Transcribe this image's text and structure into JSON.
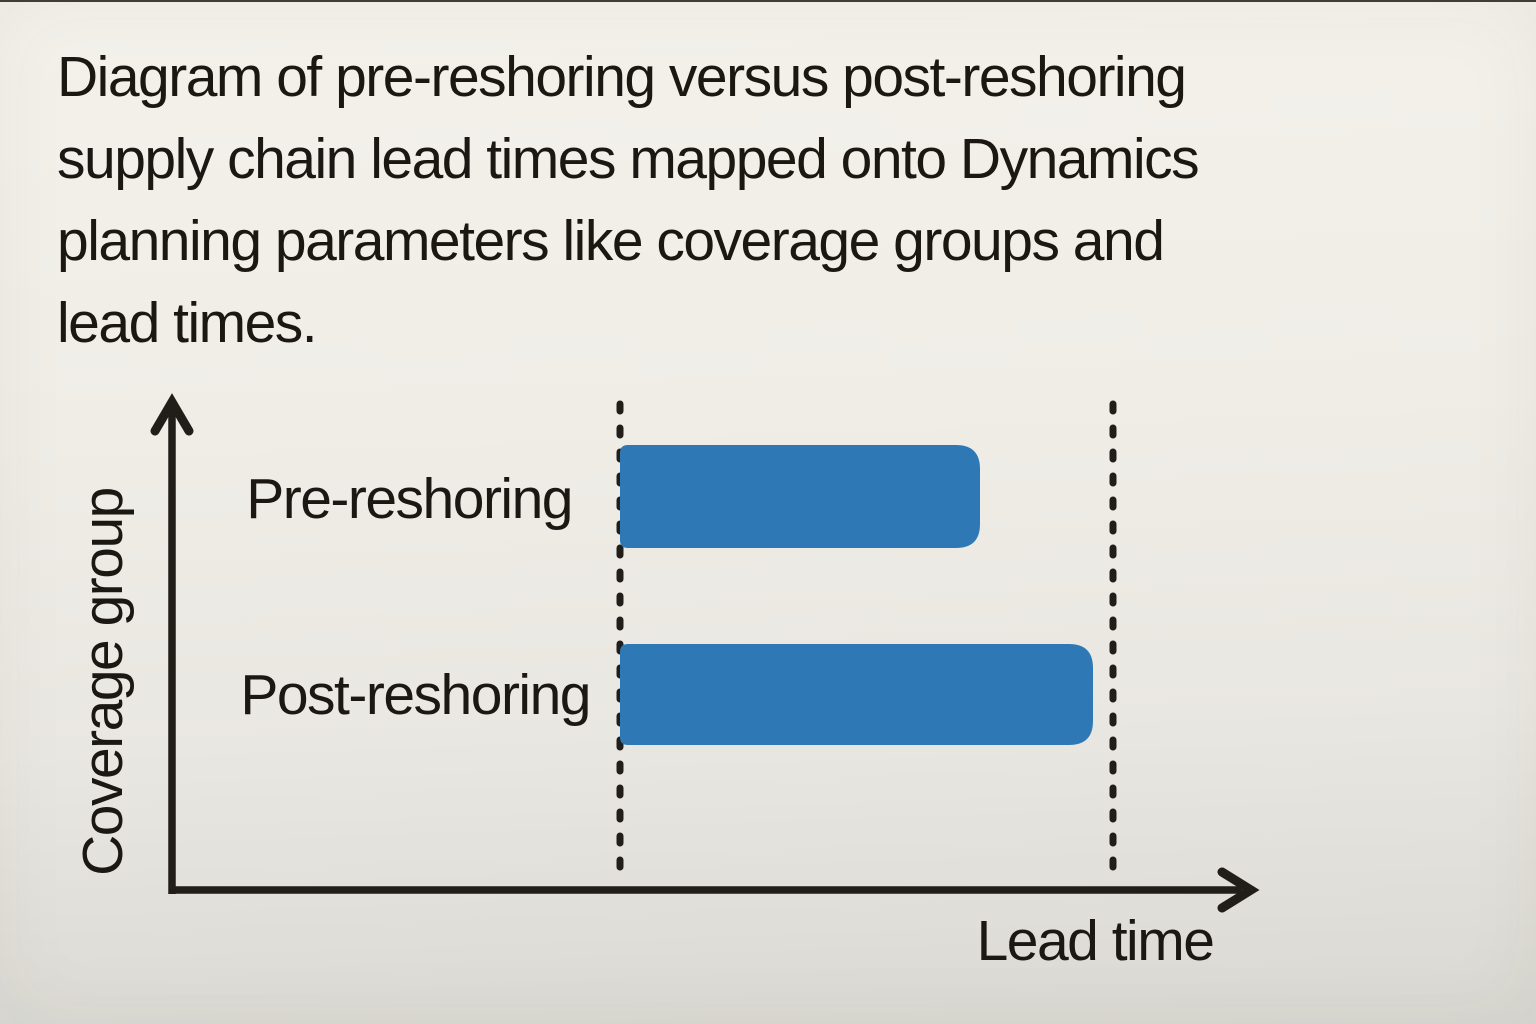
{
  "title": {
    "lines": [
      "Diagram of pre-reshoring versus post-reshoring",
      "supply chain lead times mapped onto Dynamics",
      "planning parameters like coverage groups and",
      "lead times."
    ]
  },
  "colors": {
    "ink": "#1b1813",
    "axis": "#211e1a",
    "bar_blue": "#2e79b5",
    "background_top": "#f2efe9",
    "background_bottom": "#d9d8d2"
  },
  "chart_data": {
    "type": "bar",
    "orientation": "horizontal",
    "title": "Diagram of pre-reshoring versus post-reshoring supply chain lead times mapped onto Dynamics planning parameters like coverage groups and lead times.",
    "categories": [
      "Pre-reshoring",
      "Post-reshoring"
    ],
    "values": [
      0.73,
      0.96
    ],
    "value_scale": "relative lead time, fraction of the dashed reference window (no numeric ticks shown)",
    "xlabel": "Lead time",
    "ylabel": "Coverage group",
    "xlim": [
      0,
      1.08
    ],
    "reference_lines_x": [
      0,
      1
    ],
    "reference_line_style": "dashed",
    "bar_color": "#2e79b5",
    "axis_color": "#211e1a",
    "grid": false,
    "legend_position": "none",
    "tick_labels": "none"
  }
}
